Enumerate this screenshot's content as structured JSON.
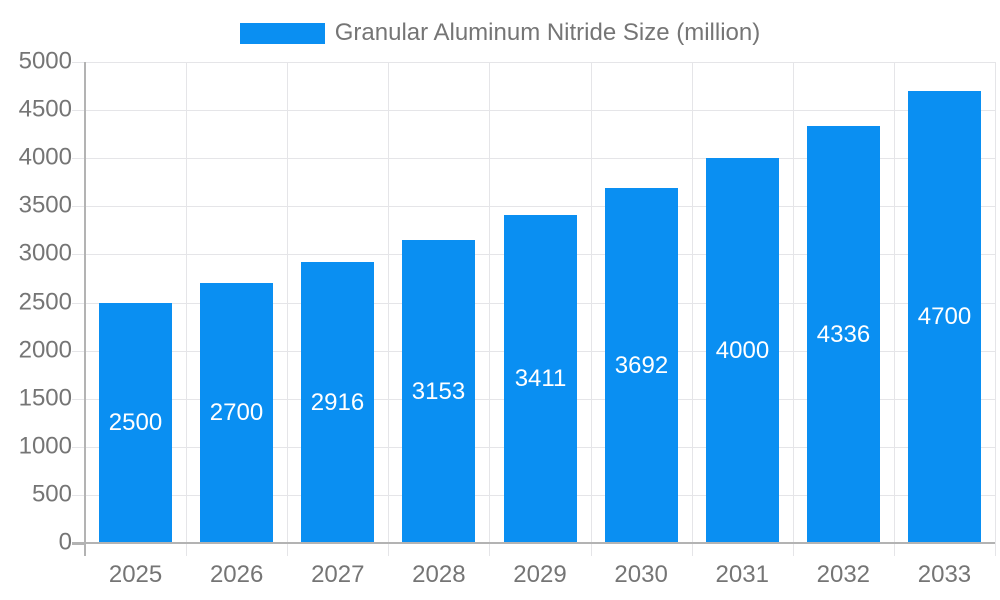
{
  "legend": {
    "label": "Granular Aluminum Nitride Size (million)"
  },
  "chart_data": {
    "type": "bar",
    "title": "",
    "xlabel": "",
    "ylabel": "",
    "categories": [
      "2025",
      "2026",
      "2027",
      "2028",
      "2029",
      "2030",
      "2031",
      "2032",
      "2033"
    ],
    "values": [
      2500,
      2700,
      2916,
      3153,
      3411,
      3692,
      4000,
      4336,
      4700
    ],
    "series_name": "Granular Aluminum Nitride Size (million)",
    "bar_value_labels": [
      "2500",
      "2700",
      "2916",
      "3153",
      "3411",
      "3692",
      "4000",
      "4336",
      "4700"
    ],
    "ylim": [
      0,
      5000
    ],
    "ytick_step": 500,
    "yticks": [
      0,
      500,
      1000,
      1500,
      2000,
      2500,
      3000,
      3500,
      4000,
      4500,
      5000
    ],
    "grid": true,
    "legend_position": "top-center",
    "value_labels_visible": true,
    "colors": {
      "bar": "#0a8ff2",
      "bar_label_text": "#ffffff",
      "grid_line": "#e5e5e8",
      "axis_line": "#b3b3b3",
      "tick_text": "#757575"
    }
  }
}
